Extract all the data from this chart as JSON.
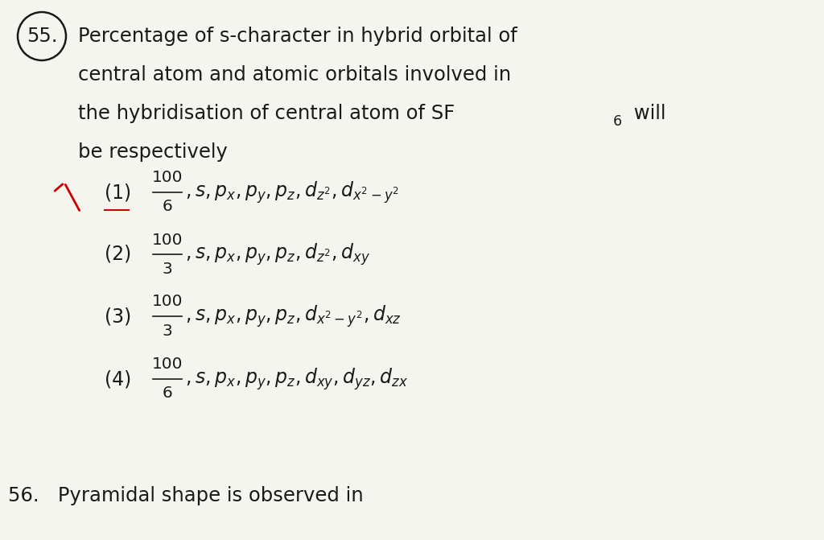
{
  "background_color": "#f5f5f0",
  "question_number": "55.",
  "question_text_lines": [
    "Percentage of s-character in hybrid orbital of",
    "central atom and atomic orbitals involved in",
    "the hybridisation of central atom of SF₆ will",
    "be respectively"
  ],
  "options": [
    {
      "number": "(1)",
      "fraction_num": "100",
      "fraction_den": "6",
      "rest": ", s, p_{x}, p_{y}, p_{z}, d_{z^{2}}, d_{x^{2}-y^{2}}",
      "circled": true
    },
    {
      "number": "(2)",
      "fraction_num": "100",
      "fraction_den": "3",
      "rest": ", s, p_{x}, p_{y}, p_{z}, d_{z^{2}}, d_{xy}",
      "circled": false
    },
    {
      "number": "(3)",
      "fraction_num": "100",
      "fraction_den": "3",
      "rest": ", s, p_{x}, p_{y}, p_{z}, d_{x^{2}-y^{2}}, d_{xz}",
      "circled": false
    },
    {
      "number": "(4)",
      "fraction_num": "100",
      "fraction_den": "6",
      "rest": ", s, p_{x}, p_{y}, p_{z}, d_{xy}, d_{yz}, d_{zx}",
      "circled": false
    }
  ],
  "bottom_text": "56.   Pyramidal shape is observed in",
  "checkmark_color": "#cc0000",
  "text_color": "#1a1a1a",
  "circle_color": "#1a1a1a"
}
